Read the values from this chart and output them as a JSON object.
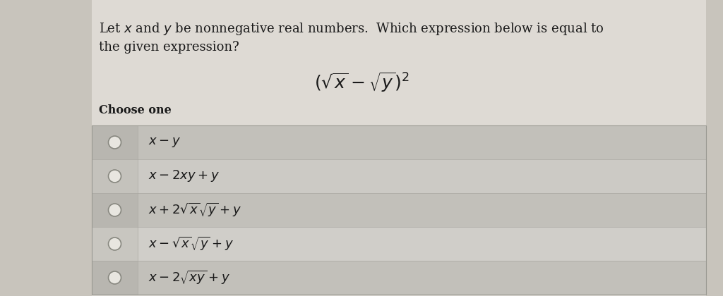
{
  "background_color": "#c8c4bc",
  "content_bg": "#dedad4",
  "row_bg_odd": "#c8c5be",
  "row_bg_even": "#d5d2cb",
  "radio_col_bg_odd": "#bfbdb8",
  "radio_col_bg_even": "#cccac4",
  "title_line1": "Let $x$ and $y$ be nonnegative real numbers.  Which expression below is equal to",
  "title_line2": "the given expression?",
  "given_expression": "$(\\sqrt{x} - \\sqrt{y})^2$",
  "choose_one_label": "Choose one",
  "options": [
    "$x - y$",
    "$x - 2xy + y$",
    "$x + 2\\sqrt{x}\\sqrt{y} + y$",
    "$x - \\sqrt{x}\\sqrt{y} + y$",
    "$x - 2\\sqrt{xy} + y$"
  ],
  "text_color": "#1a1a1a",
  "fig_width": 10.24,
  "fig_height": 4.2,
  "dpi": 100
}
